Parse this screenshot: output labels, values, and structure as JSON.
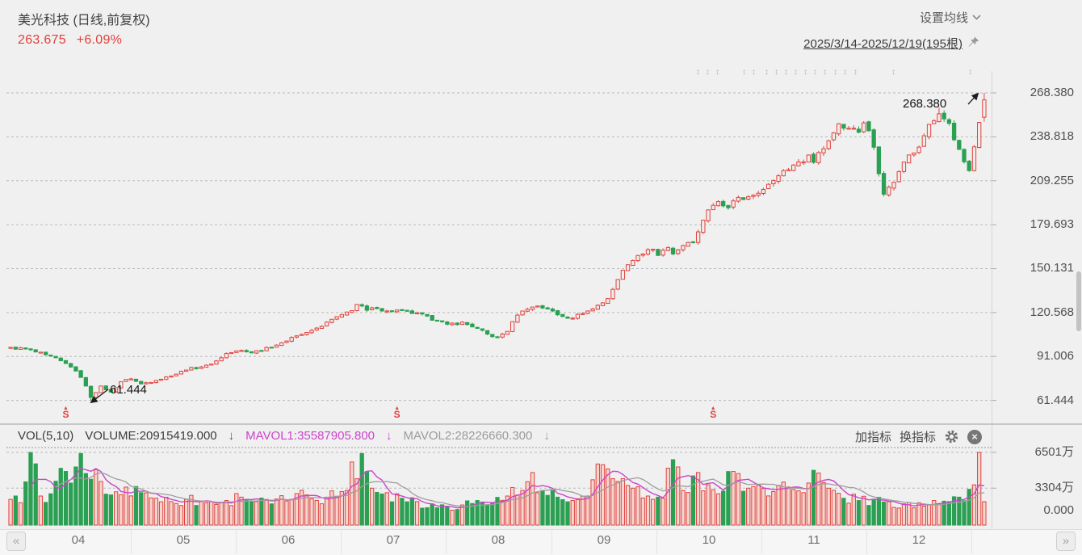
{
  "header": {
    "title": "美光科技 (日线,前复权)",
    "price": "263.675",
    "change": "+6.09%",
    "ma_settings": "设置均线",
    "date_range": "2025/3/14-2025/12/19(195根)"
  },
  "price_pane": {
    "axis_ticks": [
      "268.380",
      "238.818",
      "209.255",
      "179.693",
      "150.131",
      "120.568",
      "91.006",
      "61.444"
    ],
    "low_annotation": "61.444",
    "high_annotation": "268.380"
  },
  "vol_header": {
    "indicator": "VOL(5,10)",
    "volume_label": "VOLUME:20915419.000",
    "mavol1_label": "MAVOL1:35587905.800",
    "mavol2_label": "MAVOL2:28226660.300",
    "arrow": "↓",
    "add_indicator": "加指标",
    "switch_indicator": "换指标"
  },
  "volume_pane": {
    "axis_ticks": [
      "6501万",
      "3304万",
      "0.000"
    ]
  },
  "x_axis": {
    "months": [
      "04",
      "05",
      "06",
      "07",
      "08",
      "09",
      "10",
      "11",
      "12"
    ],
    "prev_button": "«",
    "next_button": "»"
  },
  "misc": {
    "event_glyph": "↕",
    "marker_arrow": "▲",
    "marker_letter": "S",
    "close_x": "×"
  },
  "chart_data": {
    "type": "candlestick",
    "title": "美光科技 日线 前复权",
    "bar_count": 195,
    "date_start": "2025/3/14",
    "date_end": "2025/12/19",
    "last_bar": {
      "open": 252.0,
      "close": 263.675,
      "high": 268.38,
      "low": 249.0
    },
    "last_close": 263.675,
    "last_change_pct": 6.09,
    "min_low": 61.444,
    "max_high": 268.38,
    "price_axis": [
      268.38,
      238.818,
      209.255,
      179.693,
      150.131,
      120.568,
      91.006,
      61.444
    ],
    "volume_axis_wan": [
      6501,
      3304,
      0
    ],
    "volume_current": 20915419.0,
    "mavol1_current": 35587905.8,
    "mavol2_current": 28226660.3,
    "close_anchors": [
      [
        0,
        97
      ],
      [
        3,
        96
      ],
      [
        5,
        94
      ],
      [
        7,
        92
      ],
      [
        10,
        88
      ],
      [
        12,
        84
      ],
      [
        14,
        77
      ],
      [
        15,
        71
      ],
      [
        16,
        63.5
      ],
      [
        18,
        71
      ],
      [
        20,
        67
      ],
      [
        22,
        74
      ],
      [
        24,
        76
      ],
      [
        26,
        72.5
      ],
      [
        29,
        75
      ],
      [
        32,
        78
      ],
      [
        35,
        82
      ],
      [
        39,
        85
      ],
      [
        41,
        88
      ],
      [
        43,
        93
      ],
      [
        46,
        95
      ],
      [
        48,
        93.5
      ],
      [
        51,
        97
      ],
      [
        54,
        100
      ],
      [
        56,
        104
      ],
      [
        59,
        107
      ],
      [
        61,
        110
      ],
      [
        63,
        114
      ],
      [
        66,
        119
      ],
      [
        68,
        122
      ],
      [
        69,
        126
      ],
      [
        71,
        122
      ],
      [
        73,
        123.5
      ],
      [
        75,
        121.5
      ],
      [
        78,
        122
      ],
      [
        80,
        120
      ],
      [
        83,
        118
      ],
      [
        85,
        115
      ],
      [
        87,
        112.5
      ],
      [
        90,
        114
      ],
      [
        92,
        111
      ],
      [
        95,
        106
      ],
      [
        97,
        104
      ],
      [
        99,
        108
      ],
      [
        101,
        119
      ],
      [
        103,
        123
      ],
      [
        105,
        125
      ],
      [
        107,
        123
      ],
      [
        109,
        119
      ],
      [
        112,
        117
      ],
      [
        114,
        120
      ],
      [
        116,
        123
      ],
      [
        119,
        130
      ],
      [
        120,
        136
      ],
      [
        121,
        143
      ],
      [
        123,
        153
      ],
      [
        125,
        159
      ],
      [
        128,
        163
      ],
      [
        129,
        159
      ],
      [
        131,
        164
      ],
      [
        132,
        160
      ],
      [
        133,
        163
      ],
      [
        136,
        168
      ],
      [
        137,
        175
      ],
      [
        138,
        183
      ],
      [
        139,
        190
      ],
      [
        141,
        195
      ],
      [
        143,
        191
      ],
      [
        144,
        196
      ],
      [
        146,
        197
      ],
      [
        149,
        201
      ],
      [
        151,
        207
      ],
      [
        153,
        213
      ],
      [
        156,
        220
      ],
      [
        158,
        222
      ],
      [
        159,
        227
      ],
      [
        160,
        222
      ],
      [
        161,
        228
      ],
      [
        163,
        236
      ],
      [
        165,
        248
      ],
      [
        167,
        245
      ],
      [
        169,
        242
      ],
      [
        170,
        248
      ],
      [
        171,
        243
      ],
      [
        172,
        232
      ],
      [
        173,
        214
      ],
      [
        174,
        200
      ],
      [
        175,
        205
      ],
      [
        177,
        215
      ],
      [
        178,
        222
      ],
      [
        180,
        228
      ],
      [
        182,
        240
      ],
      [
        183,
        247
      ],
      [
        185,
        254
      ],
      [
        187,
        248
      ],
      [
        188,
        237
      ],
      [
        189,
        230
      ],
      [
        190,
        222
      ],
      [
        191,
        216
      ],
      [
        192,
        232
      ],
      [
        193,
        248.5
      ],
      [
        194,
        263.675
      ]
    ],
    "volume_anchors_wan": [
      [
        0,
        2300
      ],
      [
        2,
        2000
      ],
      [
        4,
        6500
      ],
      [
        6,
        2600
      ],
      [
        8,
        2800
      ],
      [
        11,
        4800
      ],
      [
        13,
        5200
      ],
      [
        14,
        6400
      ],
      [
        16,
        4100
      ],
      [
        18,
        3900
      ],
      [
        20,
        2700
      ],
      [
        23,
        3400
      ],
      [
        26,
        2900
      ],
      [
        29,
        2400
      ],
      [
        32,
        2100
      ],
      [
        35,
        2300
      ],
      [
        39,
        2000
      ],
      [
        43,
        2200
      ],
      [
        46,
        2500
      ],
      [
        49,
        2100
      ],
      [
        52,
        1900
      ],
      [
        56,
        2300
      ],
      [
        59,
        2700
      ],
      [
        63,
        2500
      ],
      [
        66,
        3000
      ],
      [
        70,
        6400
      ],
      [
        72,
        3300
      ],
      [
        75,
        2900
      ],
      [
        78,
        2400
      ],
      [
        81,
        2100
      ],
      [
        84,
        1900
      ],
      [
        87,
        1600
      ],
      [
        90,
        1800
      ],
      [
        93,
        2200
      ],
      [
        96,
        2000
      ],
      [
        99,
        2600
      ],
      [
        102,
        3100
      ],
      [
        104,
        4700
      ],
      [
        106,
        3100
      ],
      [
        109,
        2500
      ],
      [
        112,
        2200
      ],
      [
        115,
        2600
      ],
      [
        118,
        5400
      ],
      [
        121,
        3900
      ],
      [
        124,
        3300
      ],
      [
        127,
        2600
      ],
      [
        130,
        2400
      ],
      [
        132,
        5850
      ],
      [
        134,
        3100
      ],
      [
        136,
        4400
      ],
      [
        139,
        3600
      ],
      [
        141,
        2800
      ],
      [
        144,
        4800
      ],
      [
        147,
        3300
      ],
      [
        149,
        3600
      ],
      [
        152,
        3000
      ],
      [
        155,
        3400
      ],
      [
        158,
        2900
      ],
      [
        160,
        4900
      ],
      [
        163,
        3300
      ],
      [
        166,
        2400
      ],
      [
        169,
        2200
      ],
      [
        172,
        2300
      ],
      [
        175,
        2100
      ],
      [
        178,
        1900
      ],
      [
        181,
        2000
      ],
      [
        184,
        2200
      ],
      [
        187,
        2100
      ],
      [
        189,
        2500
      ],
      [
        191,
        3200
      ],
      [
        192,
        3600
      ],
      [
        193,
        6501
      ],
      [
        194,
        2092
      ]
    ],
    "event_marker_indices": [
      11,
      77,
      140
    ],
    "up_color": "#e2413d",
    "up_fill": "#f0edeb",
    "up_vol_fill": "#f4d6cf",
    "down_color": "#2ba052",
    "mavol1_color": "#cc44cc",
    "mavol2_color": "#9e9e9e",
    "grid": true,
    "ylim": [
      61.444,
      268.38
    ]
  }
}
